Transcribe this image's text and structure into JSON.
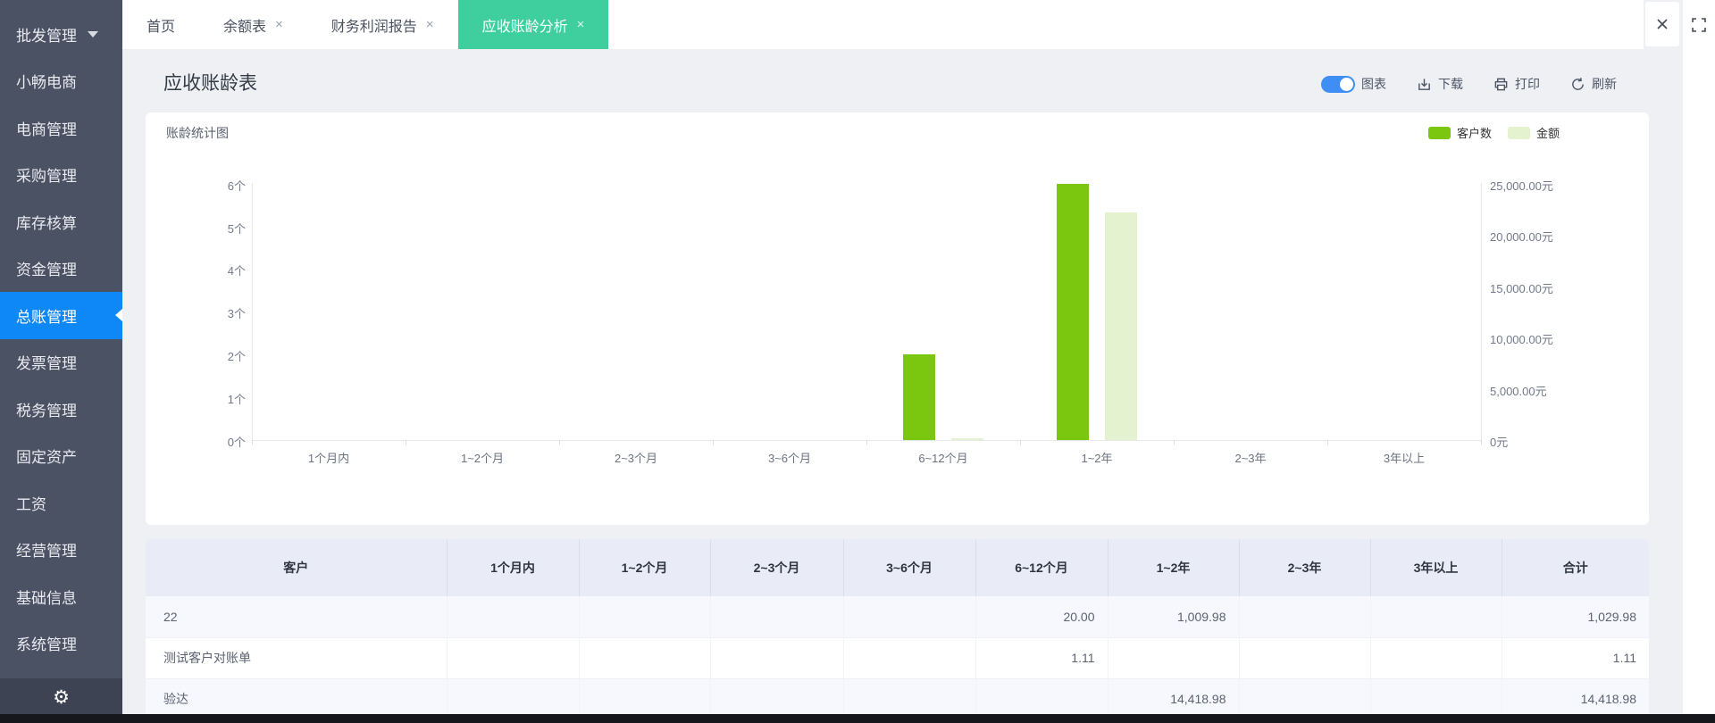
{
  "sidebar": {
    "items": [
      {
        "label": "批发管理",
        "has_caret": true,
        "active": false
      },
      {
        "label": "小畅电商",
        "has_caret": false,
        "active": false
      },
      {
        "label": "电商管理",
        "has_caret": false,
        "active": false
      },
      {
        "label": "采购管理",
        "has_caret": false,
        "active": false
      },
      {
        "label": "库存核算",
        "has_caret": false,
        "active": false
      },
      {
        "label": "资金管理",
        "has_caret": false,
        "active": false
      },
      {
        "label": "总账管理",
        "has_caret": false,
        "active": true
      },
      {
        "label": "发票管理",
        "has_caret": false,
        "active": false
      },
      {
        "label": "税务管理",
        "has_caret": false,
        "active": false
      },
      {
        "label": "固定资产",
        "has_caret": false,
        "active": false
      },
      {
        "label": "工资",
        "has_caret": false,
        "active": false
      },
      {
        "label": "经营管理",
        "has_caret": false,
        "active": false
      },
      {
        "label": "基础信息",
        "has_caret": false,
        "active": false
      },
      {
        "label": "系统管理",
        "has_caret": false,
        "active": false
      }
    ],
    "footer_icon": "gear-icon",
    "colors": {
      "bg": "#4a5264",
      "active_bg": "#0e87f7",
      "footer_bg": "#3d4352"
    }
  },
  "tabs": [
    {
      "label": "首页",
      "closable": false,
      "active": false
    },
    {
      "label": "余额表",
      "closable": true,
      "active": false
    },
    {
      "label": "财务利润报告",
      "closable": true,
      "active": false
    },
    {
      "label": "应收账龄分析",
      "closable": true,
      "active": true
    }
  ],
  "window_controls": {
    "close_icon": "close-icon",
    "fullscreen_icon": "fullscreen-icon"
  },
  "page": {
    "title": "应收账龄表"
  },
  "toolbar": {
    "chart_toggle": {
      "label": "图表",
      "state_on": true,
      "color": "#3e8ef5"
    },
    "buttons": [
      {
        "icon": "download-icon",
        "label": "下载"
      },
      {
        "icon": "printer-icon",
        "label": "打印"
      },
      {
        "icon": "refresh-icon",
        "label": "刷新"
      }
    ]
  },
  "chart_data": {
    "type": "bar",
    "title": "账龄统计图",
    "categories": [
      "1个月内",
      "1~2个月",
      "2~3个月",
      "3~6个月",
      "6~12个月",
      "1~2年",
      "2~3年",
      "3年以上"
    ],
    "series": [
      {
        "name": "客户数",
        "color": "#7bc60e",
        "axis": "left",
        "values": [
          0,
          0,
          0,
          0,
          2,
          6,
          0,
          0
        ]
      },
      {
        "name": "金额",
        "color": "#e4f2cf",
        "axis": "right",
        "values": [
          0,
          0,
          0,
          0,
          21.11,
          22180,
          0,
          0
        ]
      }
    ],
    "left_axis": {
      "min": 0,
      "max": 6,
      "tick_labels": [
        "0个",
        "1个",
        "2个",
        "3个",
        "4个",
        "5个",
        "6个"
      ]
    },
    "right_axis": {
      "min": 0,
      "max": 25000,
      "tick_labels": [
        "0元",
        "5,000.00元",
        "10,000.00元",
        "15,000.00元",
        "20,000.00元",
        "25,000.00元"
      ]
    },
    "legend_position": "top-right",
    "grid": false
  },
  "table": {
    "columns": [
      "客户",
      "1个月内",
      "1~2个月",
      "2~3个月",
      "3~6个月",
      "6~12个月",
      "1~2年",
      "2~3年",
      "3年以上",
      "合计"
    ],
    "rows": [
      [
        "22",
        "",
        "",
        "",
        "",
        "20.00",
        "1,009.98",
        "",
        "",
        "1,029.98"
      ],
      [
        "测试客户对账单",
        "",
        "",
        "",
        "",
        "1.11",
        "",
        "",
        "",
        "1.11"
      ],
      [
        "验达",
        "",
        "",
        "",
        "",
        "",
        "14,418.98",
        "",
        "",
        "14,418.98"
      ]
    ]
  }
}
